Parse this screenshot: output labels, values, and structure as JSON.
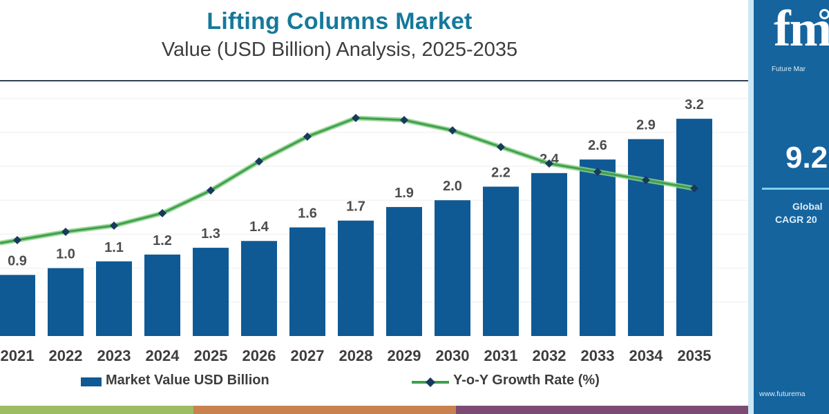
{
  "colors": {
    "title_teal": "#15799b",
    "text_dark": "#3d3d3d",
    "bar_blue": "#0f5a94",
    "top_border": "#2e4050",
    "strip_green": "#9cbd62",
    "strip_orange": "#c8814f",
    "strip_purple": "#7d4a73",
    "sidebar_panel": "#15649e",
    "sidebar_gap": "#cbe8f7",
    "sidebar_divider": "#7ed3f0",
    "sidebar_text": "#ddeefa"
  },
  "chart_data": {
    "type": "bar",
    "title": "Lifting Columns Market",
    "subtitle": "Value (USD Billion) Analysis, 2025-2035",
    "categories": [
      "2021",
      "2022",
      "2023",
      "2024",
      "2025",
      "2026",
      "2027",
      "2028",
      "2029",
      "2030",
      "2031",
      "2032",
      "2033",
      "2034",
      "2035"
    ],
    "series": [
      {
        "name": "Market Value USD Billion",
        "type": "bar",
        "color": "#0f5a94",
        "values": [
          0.9,
          1.0,
          1.1,
          1.2,
          1.3,
          1.4,
          1.6,
          1.7,
          1.9,
          2.0,
          2.2,
          2.4,
          2.6,
          2.9,
          3.2
        ]
      },
      {
        "name": "Y-o-Y Growth Rate (%)",
        "type": "line",
        "color": "#3da04b",
        "glow_color": "#8fd08c",
        "marker": "diamond",
        "marker_color": "#173a5c",
        "values_are_estimated_from_unlabeled_line": true,
        "values": [
          5.0,
          5.4,
          5.7,
          6.3,
          7.4,
          8.8,
          10.0,
          10.9,
          10.8,
          10.3,
          9.5,
          8.7,
          8.3,
          7.9,
          7.5
        ]
      }
    ],
    "bar_value_labels": [
      "0.9",
      "1.0",
      "1.1",
      "1.2",
      "1.3",
      "1.4",
      "1.6",
      "1.7",
      "1.9",
      "2.0",
      "2.2",
      "2.4",
      "2.6",
      "2.9",
      "3.2"
    ],
    "ylim_bar": [
      0,
      3.76
    ],
    "growth_axis_visible": false,
    "grid": "faint-horizontal",
    "legend_position": "bottom"
  },
  "sidebar": {
    "logo_text": "fmi",
    "logo_subtext": "Future Mar",
    "cagr_value": "9.2",
    "caption_line1": "Global",
    "caption_line2": "CAGR 20",
    "website": "www.futurema"
  }
}
